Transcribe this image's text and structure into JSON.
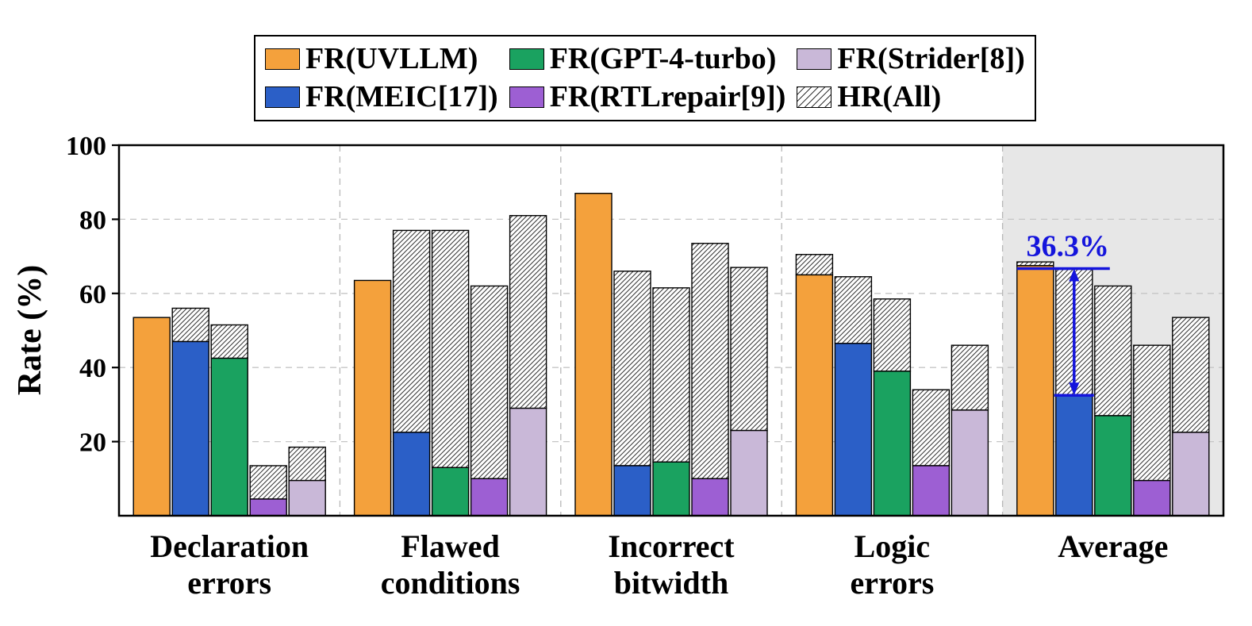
{
  "chart_data": {
    "type": "bar",
    "ylabel": "Rate (%)",
    "ylim": [
      0,
      100
    ],
    "yticks": [
      20,
      40,
      60,
      80,
      100
    ],
    "grid": true,
    "legend_position": "top-center",
    "value_unit": "%",
    "categories": [
      "Declaration errors",
      "Flawed conditions",
      "Incorrect bitwidth",
      "Logic errors",
      "Average"
    ],
    "category_label_lines": [
      [
        "Declaration",
        "errors"
      ],
      [
        "Flawed",
        "conditions"
      ],
      [
        "Incorrect",
        "bitwidth"
      ],
      [
        "Logic",
        "errors"
      ],
      [
        "Average"
      ]
    ],
    "series": [
      {
        "name": "FR(UVLLM)",
        "color": "#F4A13C",
        "FR": [
          53.5,
          63.5,
          87,
          65,
          67.5
        ],
        "HR": [
          53.5,
          63.5,
          87,
          70.5,
          68.5
        ]
      },
      {
        "name": "FR(MEIC[17])",
        "color": "#2B5FC7",
        "FR": [
          47,
          22.5,
          13.5,
          46.5,
          32.5
        ],
        "HR": [
          56,
          77,
          66,
          64.5,
          66.5
        ]
      },
      {
        "name": "FR(GPT-4-turbo)",
        "color": "#1AA260",
        "FR": [
          42.5,
          13,
          14.5,
          39,
          27
        ],
        "HR": [
          51.5,
          77,
          61.5,
          58.5,
          62
        ]
      },
      {
        "name": "FR(RTLrepair[9])",
        "color": "#9D5FD3",
        "FR": [
          4.5,
          10,
          10,
          13.5,
          9.5
        ],
        "HR": [
          13.5,
          62,
          73.5,
          34,
          46
        ]
      },
      {
        "name": "FR(Strider[8])",
        "color": "#C9B8D8",
        "FR": [
          9.5,
          29,
          23,
          28.5,
          22.5
        ],
        "HR": [
          18.5,
          81,
          67,
          46,
          53.5
        ]
      }
    ],
    "hatch_series_label": "HR(All)",
    "highlight_category": "Average",
    "highlight_color": "#E7E7E7",
    "annotation": {
      "text": "36.3%",
      "category": "Average",
      "bar": "FR(MEIC[17])",
      "from": 32.5,
      "to": 66.7,
      "color": "#1414DC"
    }
  },
  "legend": {
    "items": [
      {
        "label": "FR(UVLLM)",
        "swatch": "#F4A13C"
      },
      {
        "label": "FR(GPT-4-turbo)",
        "swatch": "#1AA260"
      },
      {
        "label": "FR(Strider[8])",
        "swatch": "#C9B8D8"
      },
      {
        "label": "FR(MEIC[17])",
        "swatch": "#2B5FC7"
      },
      {
        "label": "FR(RTLrepair[9])",
        "swatch": "#9D5FD3"
      },
      {
        "label": "HR(All)",
        "swatch": "hatch"
      }
    ]
  }
}
